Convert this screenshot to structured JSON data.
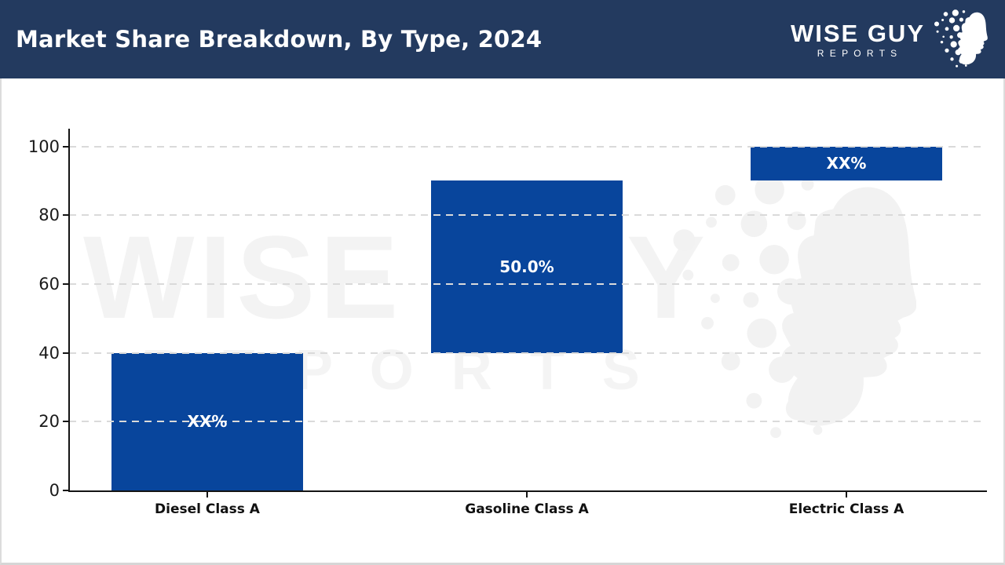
{
  "header": {
    "title": "Market Share Breakdown, By Type, 2024",
    "logo": {
      "line1": "WISE GUY",
      "line2": "R E P O R T S"
    }
  },
  "watermark": {
    "line1": "WISE GUY",
    "line2": "R E P O R T S"
  },
  "colors": {
    "header_bg": "#233a5f",
    "bar": "#08459c",
    "grid": "#dadada",
    "axis": "#141414",
    "bar_label_text": "#ffffff",
    "watermark": "#f2f2f2",
    "page_bg": "#ffffff",
    "frame_border": "#d9d9d9"
  },
  "chart_data": {
    "type": "bar",
    "subtype": "waterfall",
    "title": "Market Share Breakdown, By Type, 2024",
    "categories": [
      "Diesel Class A",
      "Gasoline Class A",
      "Electric Class A"
    ],
    "segments": [
      {
        "category": "Diesel Class A",
        "start": 0,
        "end": 40,
        "label": "XX%"
      },
      {
        "category": "Gasoline Class A",
        "start": 40,
        "end": 90,
        "label": "50.0%"
      },
      {
        "category": "Electric Class A",
        "start": 90,
        "end": 100,
        "label": "XX%"
      }
    ],
    "yticks": [
      0,
      20,
      40,
      60,
      80,
      100
    ],
    "ylim": [
      0,
      105
    ],
    "xlabel": "",
    "ylabel": "",
    "grid": "horizontal-dashed",
    "grid_over_bars": true,
    "legend": "none",
    "value_labels_inside_bars": true
  }
}
